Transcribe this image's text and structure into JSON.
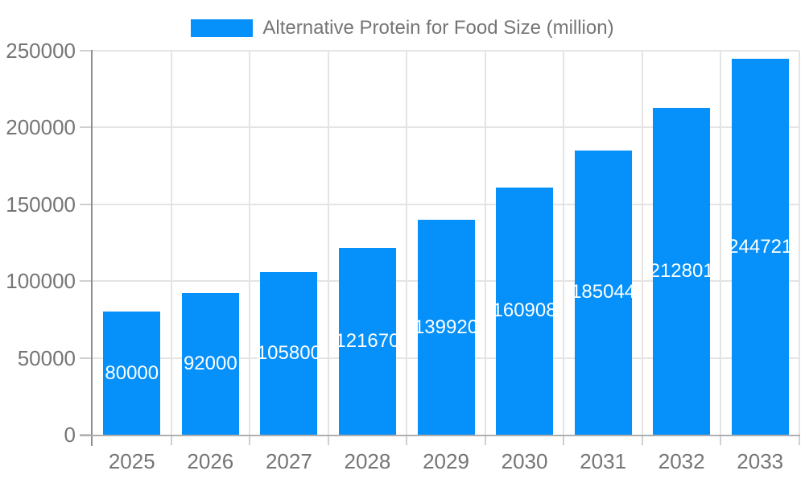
{
  "chart_data": {
    "type": "bar",
    "title": "Alternative Protein for Food Size (million)",
    "series_name": "Alternative Protein for Food Size (million)",
    "categories": [
      "2025",
      "2026",
      "2027",
      "2028",
      "2029",
      "2030",
      "2031",
      "2032",
      "2033"
    ],
    "values": [
      80000,
      92000,
      105800,
      121670,
      139920,
      160908,
      185044,
      212801,
      244721
    ],
    "xlabel": "",
    "ylabel": "",
    "ylim": [
      0,
      250000
    ],
    "yticks": [
      0,
      50000,
      100000,
      150000,
      200000,
      250000
    ],
    "grid": true,
    "legend_position": "top-center",
    "bar_label_position": "inside-center"
  },
  "colors": {
    "bar": "#0590fa",
    "grid": "#e4e4e4",
    "tick": "#cfcfcf",
    "axis_y": "#8f8f8f",
    "axis_x": "#aeaeae",
    "text": "#757575",
    "value_text": "#ffffff",
    "background": "#ffffff"
  }
}
